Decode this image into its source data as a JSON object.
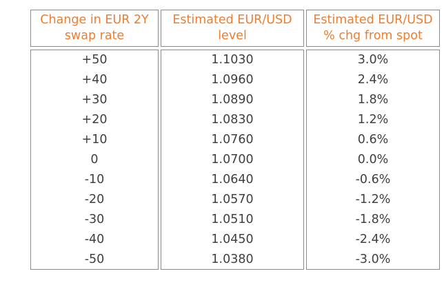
{
  "colors": {
    "header_text": "#ed7d31",
    "body_text": "#3f3f3f",
    "border": "#8a8a8a",
    "background": "#ffffff"
  },
  "table": {
    "columns": [
      {
        "header": "Change in EUR 2Y swap rate",
        "header_line1": "Change in EUR 2Y",
        "header_line2": "swap rate",
        "values": [
          "+50",
          "+40",
          "+30",
          "+20",
          "+10",
          "0",
          "-10",
          "-20",
          "-30",
          "-40",
          "-50"
        ]
      },
      {
        "header": "Estimated EUR/USD level",
        "header_line1": "Estimated EUR/USD",
        "header_line2": "level",
        "values": [
          "1.1030",
          "1.0960",
          "1.0890",
          "1.0830",
          "1.0760",
          "1.0700",
          "1.0640",
          "1.0570",
          "1.0510",
          "1.0450",
          "1.0380"
        ]
      },
      {
        "header": "Estimated EUR/USD % chg from spot",
        "header_line1": "Estimated EUR/USD",
        "header_line2": "% chg from spot",
        "values": [
          "3.0%",
          "2.4%",
          "1.8%",
          "1.2%",
          "0.6%",
          "0.0%",
          "-0.6%",
          "-1.2%",
          "-1.8%",
          "-2.4%",
          "-3.0%"
        ]
      }
    ]
  },
  "chart_data": {
    "type": "table",
    "columns": [
      "Change in EUR 2Y swap rate",
      "Estimated EUR/USD level",
      "Estimated EUR/USD % chg from spot"
    ],
    "rows": [
      [
        "+50",
        "1.1030",
        "3.0%"
      ],
      [
        "+40",
        "1.0960",
        "2.4%"
      ],
      [
        "+30",
        "1.0890",
        "1.8%"
      ],
      [
        "+20",
        "1.0830",
        "1.2%"
      ],
      [
        "+10",
        "1.0760",
        "0.6%"
      ],
      [
        "0",
        "1.0700",
        "0.0%"
      ],
      [
        "-10",
        "1.0640",
        "-0.6%"
      ],
      [
        "-20",
        "1.0570",
        "-1.2%"
      ],
      [
        "-30",
        "1.0510",
        "-1.8%"
      ],
      [
        "-40",
        "1.0450",
        "-2.4%"
      ],
      [
        "-50",
        "1.0380",
        "-3.0%"
      ]
    ],
    "swap_rate_change_bp": [
      50,
      40,
      30,
      20,
      10,
      0,
      -10,
      -20,
      -30,
      -40,
      -50
    ],
    "estimated_eurusd_level": [
      1.103,
      1.096,
      1.089,
      1.083,
      1.076,
      1.07,
      1.064,
      1.057,
      1.051,
      1.045,
      1.038
    ],
    "estimated_pct_chg_from_spot": [
      3.0,
      2.4,
      1.8,
      1.2,
      0.6,
      0.0,
      -0.6,
      -1.2,
      -1.8,
      -2.4,
      -3.0
    ]
  }
}
